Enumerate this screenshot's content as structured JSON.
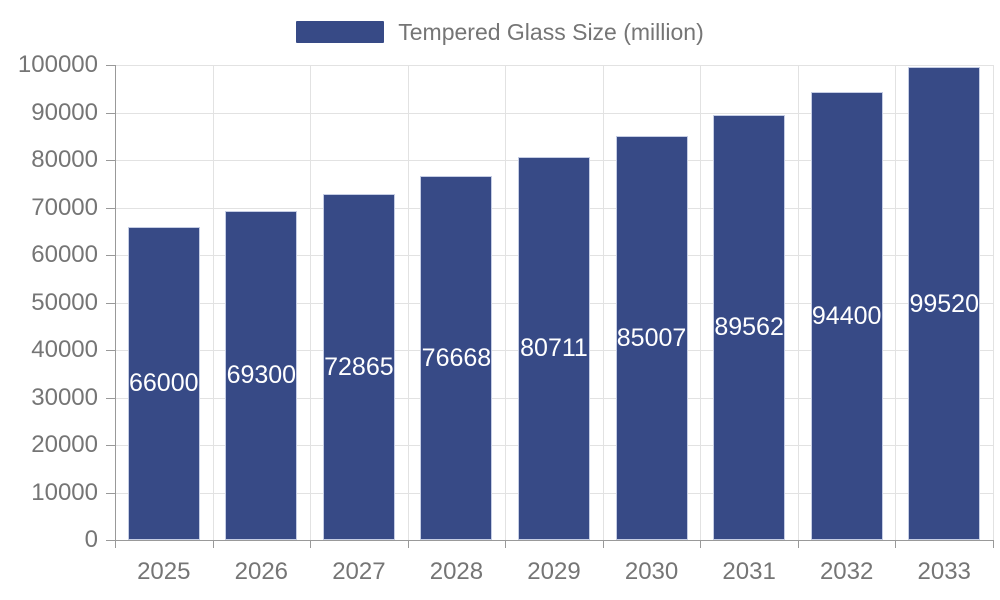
{
  "chart_data": {
    "type": "bar",
    "title": "Tempered Glass Size (million)",
    "legend": {
      "label": "Tempered Glass Size (million)",
      "position": "top"
    },
    "categories": [
      "2025",
      "2026",
      "2027",
      "2028",
      "2029",
      "2030",
      "2031",
      "2032",
      "2033"
    ],
    "series": [
      {
        "name": "Tempered Glass Size (million)",
        "values": [
          66000,
          69300,
          72865,
          76668,
          80711,
          85007,
          89562,
          94400,
          99520
        ]
      }
    ],
    "bar_value_labels": [
      "66000",
      "69300",
      "72865",
      "76668",
      "80711",
      "85007",
      "89562",
      "94400",
      "99520"
    ],
    "xlabel": "",
    "ylabel": "",
    "ylim": [
      0,
      100000
    ],
    "ytick_step": 10000,
    "ytick_labels": [
      "0",
      "10000",
      "20000",
      "30000",
      "40000",
      "50000",
      "60000",
      "70000",
      "80000",
      "90000",
      "100000"
    ],
    "grid": true,
    "colors": {
      "bar_fill": "#374A86",
      "bar_border": "#c5cde4",
      "axis_line": "#999999",
      "grid_line": "#e2e2e2",
      "tick_label": "#757575",
      "value_label": "#ffffff",
      "background": "#ffffff"
    }
  }
}
